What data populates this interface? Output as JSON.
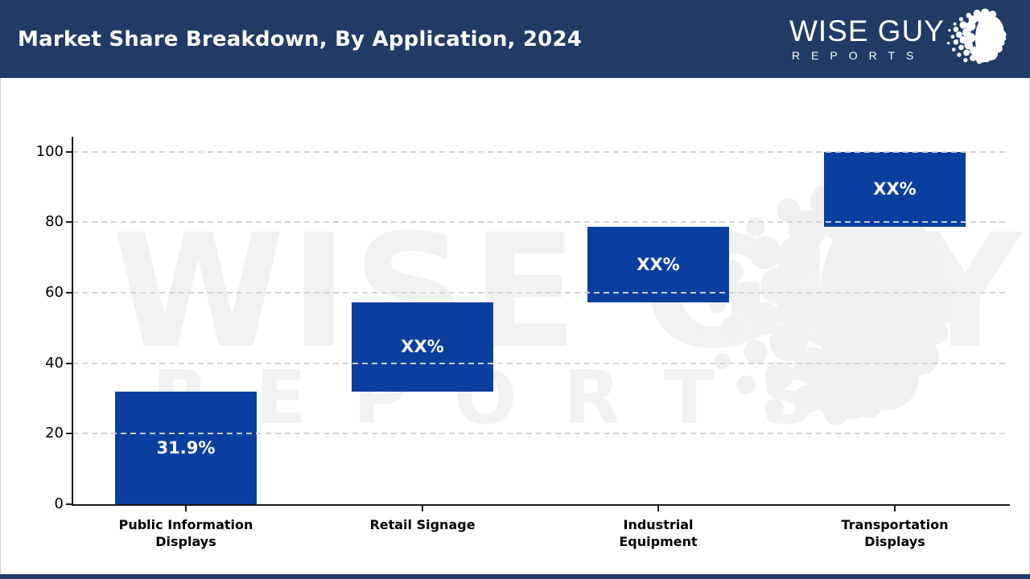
{
  "header": {
    "title": "Market Share Breakdown, By Application, 2024",
    "bg_color": "#213a66",
    "logo": {
      "name": "WISE GUY",
      "tagline": "REPORTS"
    }
  },
  "watermark": {
    "line1": "WISE GUY",
    "line2": "REPORTS"
  },
  "chart_data": {
    "type": "bar",
    "variant": "floating-waterfall-breakdown",
    "title": "Market Share Breakdown, By Application, 2024",
    "categories": [
      "Public Information Displays",
      "Retail Signage",
      "Industrial Equipment",
      "Transportation Displays"
    ],
    "category_lines": [
      [
        "Public Information",
        "Displays"
      ],
      [
        "Retail Signage"
      ],
      [
        "Industrial",
        "Equipment"
      ],
      [
        "Transportation",
        "Displays"
      ]
    ],
    "segments": [
      {
        "category": "Public Information Displays",
        "start": 0,
        "end": 31.9,
        "label": "31.9%"
      },
      {
        "category": "Retail Signage",
        "start": 31.9,
        "end": 57.3,
        "label": "XX%"
      },
      {
        "category": "Industrial Equipment",
        "start": 57.3,
        "end": 78.6,
        "label": "XX%"
      },
      {
        "category": "Transportation Displays",
        "start": 78.6,
        "end": 100,
        "label": "XX%"
      }
    ],
    "xlabel": "",
    "ylabel": "",
    "ylim": [
      0,
      100
    ],
    "yticks": [
      0,
      20,
      40,
      60,
      80,
      100
    ],
    "grid": "horizontal-dashed",
    "legend": "none",
    "bar_color": "#0a3f9f",
    "bar_label_color": "#ffffff",
    "axis_color": "#1a1a1a"
  }
}
